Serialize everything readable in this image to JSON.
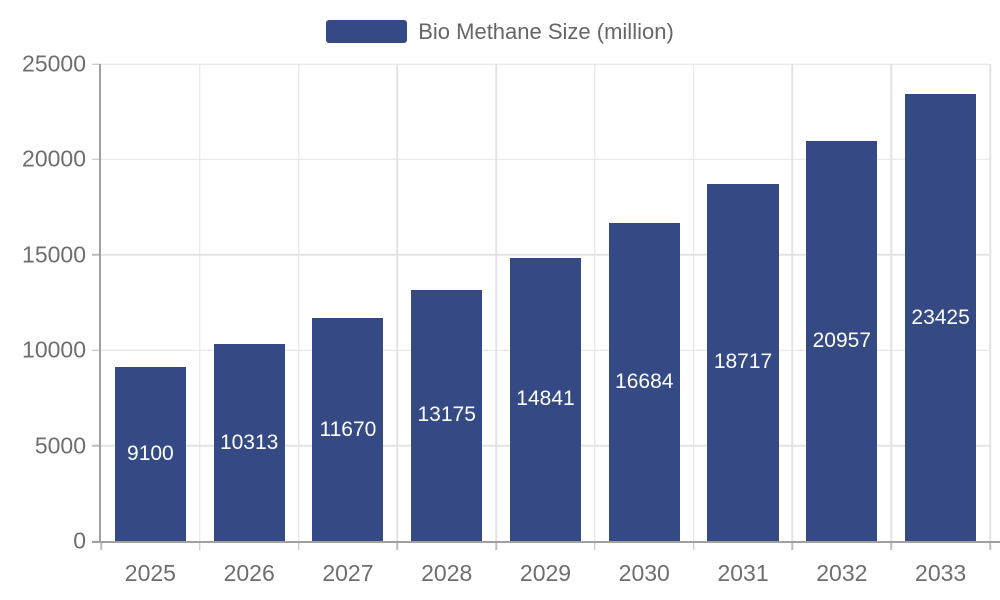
{
  "chart_data": {
    "type": "bar",
    "title": "Bio Methane Size (million)",
    "legend_position": "top-center",
    "categories": [
      "2025",
      "2026",
      "2027",
      "2028",
      "2029",
      "2030",
      "2031",
      "2032",
      "2033"
    ],
    "series": [
      {
        "name": "Bio Methane Size (million)",
        "values": [
          9100,
          10313,
          11670,
          13175,
          14841,
          16684,
          18717,
          20957,
          23425
        ],
        "color": "#354a85"
      }
    ],
    "bar_value_labels_visible": true,
    "xlabel": "",
    "ylabel": "",
    "ylim": [
      0,
      25000
    ],
    "ytick_interval": 5000,
    "yticks": [
      "0",
      "5000",
      "10000",
      "15000",
      "20000",
      "25000"
    ],
    "grid": true,
    "bar_band_fraction": 0.72
  },
  "colors": {
    "background": "#ffffff",
    "bar": "#354a85",
    "bar_value_label": "#ffffff",
    "axis_line": "#a0a0a0",
    "tick_mark": "#bdbdbd",
    "grid_line": "#e3e3e3",
    "tick_label": "#6e6e6e",
    "legend_text": "#666666"
  }
}
